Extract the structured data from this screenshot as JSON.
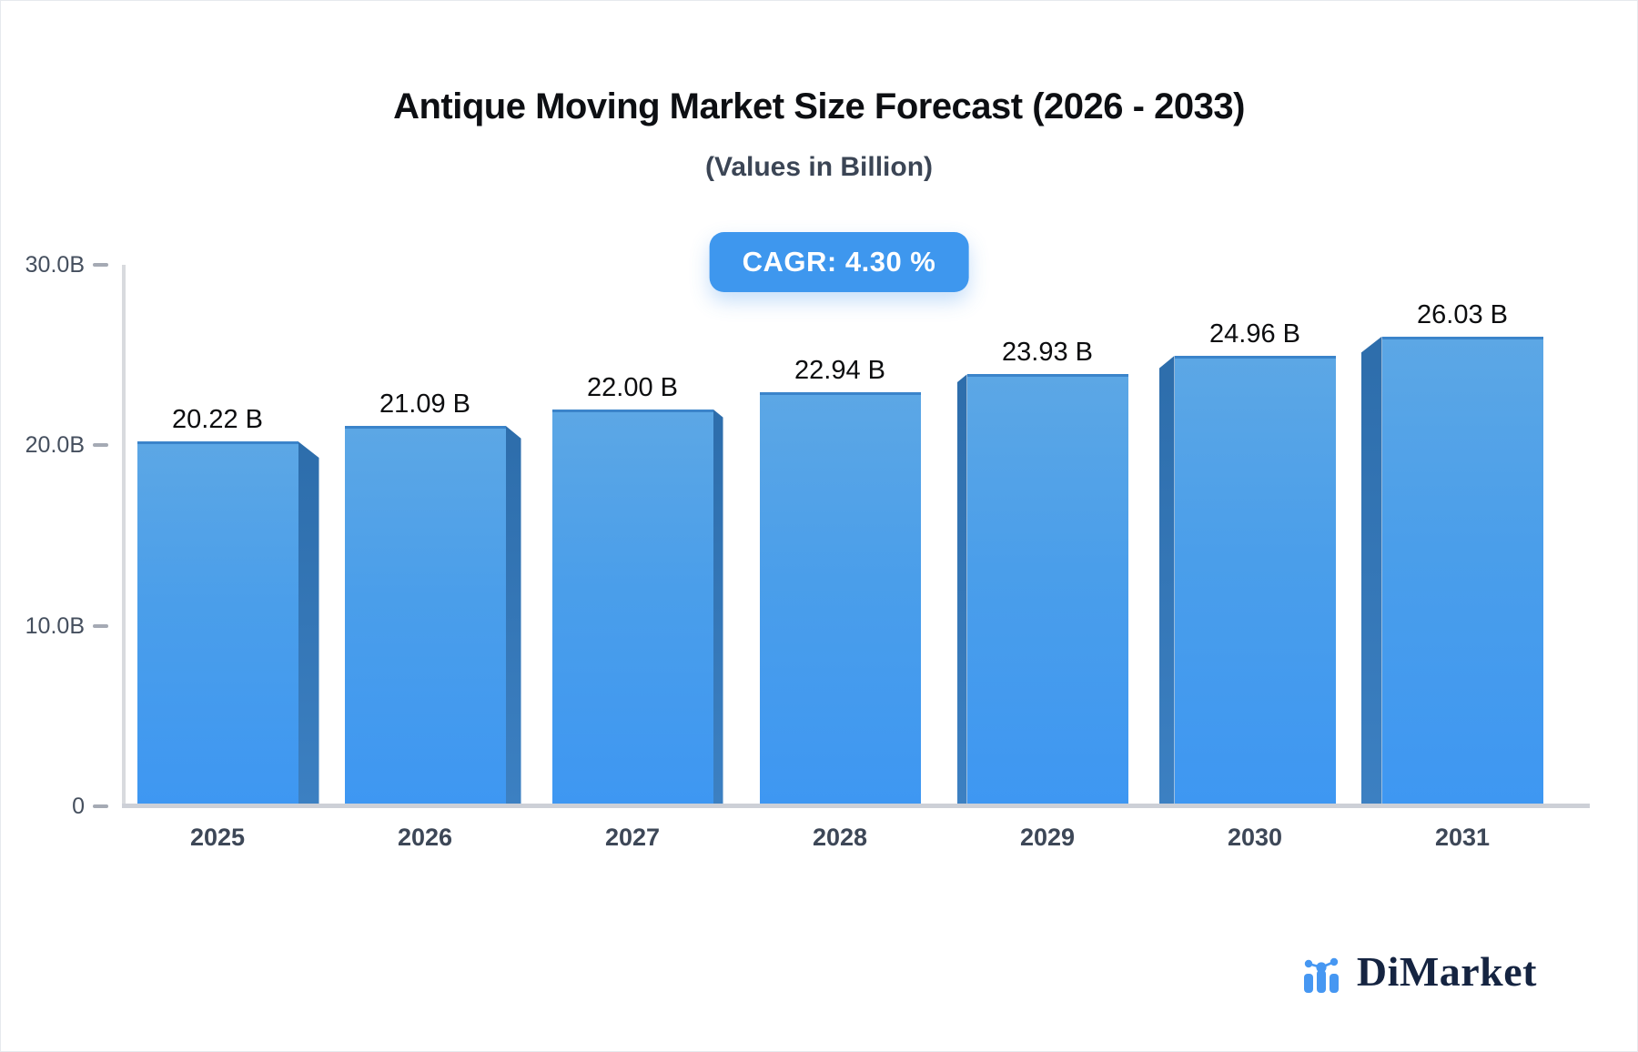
{
  "title": "Antique Moving Market Size Forecast (2026 - 2033)",
  "subtitle": "(Values in Billion)",
  "cagr_badge": "CAGR: 4.30 %",
  "watermark": {
    "brand": "DiMarket",
    "accent_color": "#4697f2",
    "text_color": "#152441"
  },
  "chart_data": {
    "type": "bar",
    "title": "Antique Moving Market Size Forecast (2026 - 2033)",
    "subtitle": "(Values in Billion)",
    "cagr_percent": 4.3,
    "unit": "Billion",
    "categories": [
      "2025",
      "2026",
      "2027",
      "2028",
      "2029",
      "2030",
      "2031"
    ],
    "values": [
      20.22,
      21.09,
      22.0,
      22.94,
      23.93,
      24.96,
      26.03
    ],
    "value_labels": [
      "20.22 B",
      "21.09 B",
      "22.00 B",
      "22.94 B",
      "23.93 B",
      "24.96 B",
      "26.03 B"
    ],
    "ylim": [
      0,
      30
    ],
    "y_ticks": [
      {
        "label": "30.0B",
        "value": 30
      },
      {
        "label": "20.0B",
        "value": 20
      },
      {
        "label": "10.0B",
        "value": 10
      },
      {
        "label": "0",
        "value": 0
      }
    ],
    "grid": false,
    "legend": false,
    "bar_style": "3d-perspective",
    "colors": {
      "face_top": "#5ca7e5",
      "face_bottom": "#3e97f2",
      "side": "#2f73b2",
      "top_edge": "#3b84ca",
      "axis": "#d8dade",
      "baseline": "#cdd0d7"
    }
  }
}
